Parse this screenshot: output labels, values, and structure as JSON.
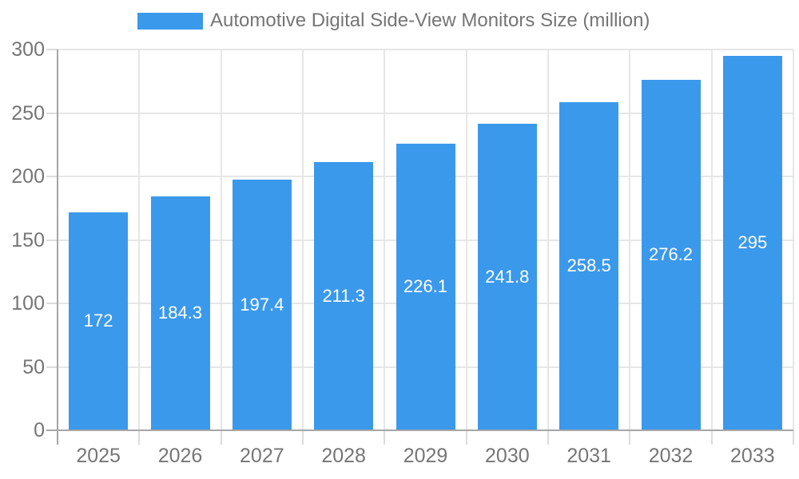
{
  "chart_data": {
    "type": "bar",
    "title": "Automotive Digital Side-View Monitors Size (million)",
    "legend": {
      "position": "top",
      "entries": [
        {
          "label": "Automotive Digital Side-View Monitors Size (million)",
          "swatch_color": "#3B99EC"
        }
      ]
    },
    "categories": [
      "2025",
      "2026",
      "2027",
      "2028",
      "2029",
      "2030",
      "2031",
      "2032",
      "2033"
    ],
    "series": [
      {
        "name": "Automotive Digital Side-View Monitors Size (million)",
        "values": [
          172,
          184.3,
          197.4,
          211.3,
          226.1,
          241.8,
          258.5,
          276.2,
          295
        ]
      }
    ],
    "value_labels": [
      "172",
      "184.3",
      "197.4",
      "211.3",
      "226.1",
      "241.8",
      "258.5",
      "276.2",
      "295"
    ],
    "xlabel": "",
    "ylabel": "",
    "ylim": [
      0,
      300
    ],
    "yticks": [
      0,
      50,
      100,
      150,
      200,
      250,
      300
    ],
    "grid": true,
    "value_labels_position": "inside-center",
    "colors": {
      "bar_fill": "#3B99EC",
      "value_label_text": "#FFFFFF",
      "axis_tick_text": "#757575",
      "legend_text": "#757575",
      "grid_line": "#E6E6E6",
      "tick_mark": "#DCDCDC",
      "axis_line": "#A6A6A6",
      "background": "#FFFFFF"
    }
  }
}
